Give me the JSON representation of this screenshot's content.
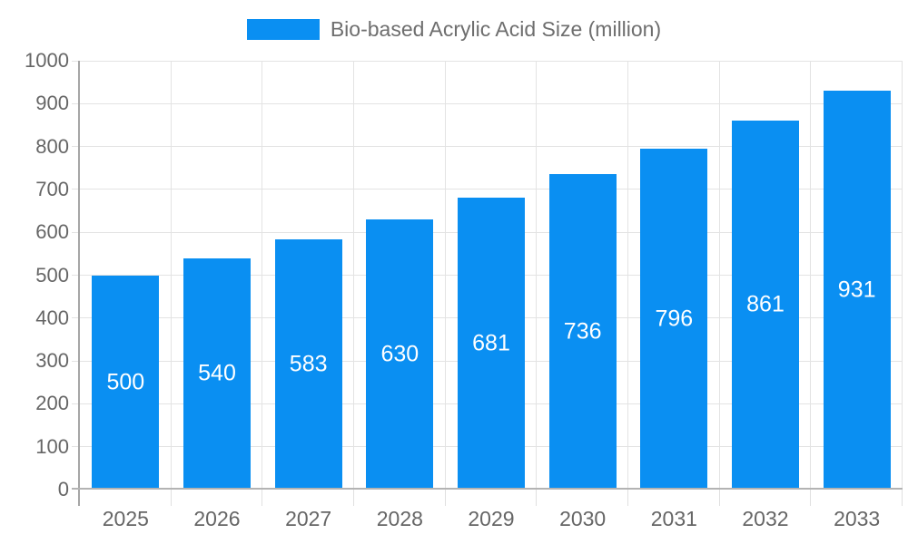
{
  "legend": {
    "label": "Bio-based Acrylic Acid Size (million)"
  },
  "colors": {
    "bar": "#0a8ff2",
    "y_axis_line": "#a6a6a6",
    "x_axis_line": "#b3b3b3",
    "grid_line": "#e3e3e3",
    "tick_line": "#e0e0e0",
    "axis_label": "#666666",
    "legend_label": "#6e6e6e",
    "bar_label": "#ffffff",
    "background": "#ffffff"
  },
  "chart_data": {
    "type": "bar",
    "title": "",
    "categories": [
      "2025",
      "2026",
      "2027",
      "2028",
      "2029",
      "2030",
      "2031",
      "2032",
      "2033"
    ],
    "series": [
      {
        "name": "Bio-based Acrylic Acid Size (million)",
        "values": [
          500,
          540,
          583,
          630,
          681,
          736,
          796,
          861,
          931
        ]
      }
    ],
    "xlabel": "",
    "ylabel": "",
    "ylim": [
      0,
      1000
    ],
    "ytick_step": 100,
    "yticks": [
      0,
      100,
      200,
      300,
      400,
      500,
      600,
      700,
      800,
      900,
      1000
    ],
    "grid": "horizontal and vertical light gray gridlines",
    "legend_position": "top-center",
    "bar_value_labels": "white, centered inside bars"
  }
}
